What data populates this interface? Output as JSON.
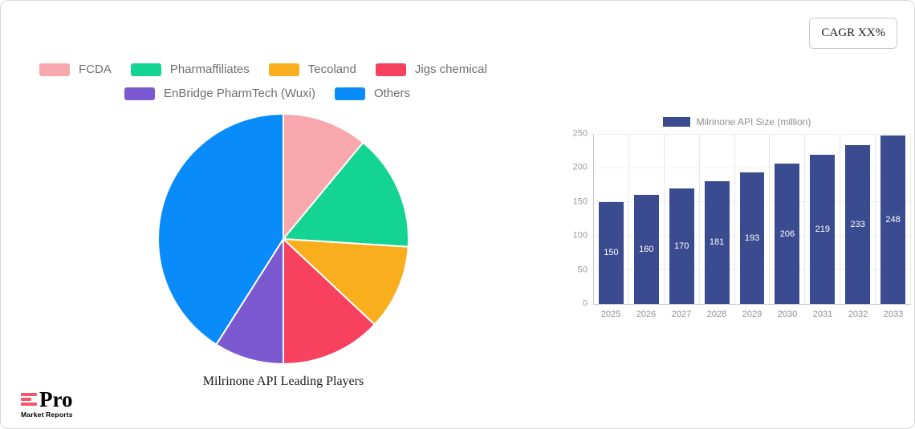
{
  "badge": {
    "label": "CAGR XX%"
  },
  "logo": {
    "name": "Pro",
    "tagline": "Market Reports",
    "accent_color": "#f4566b"
  },
  "chart_data": [
    {
      "type": "pie",
      "title": "Milrinone API Leading Players",
      "labels": [
        "FCDA",
        "Pharmaffiliates",
        "Tecoland",
        "Jigs chemical",
        "EnBridge PharmTech (Wuxi)",
        "Others"
      ],
      "values": [
        11,
        15,
        11,
        13,
        9,
        41
      ],
      "units": "percent (estimated from slice angles)",
      "colors": [
        "#f8a8ac",
        "#13d492",
        "#f9ae1d",
        "#f8405f",
        "#7a59d1",
        "#0a8bfa"
      ],
      "legend_position": "top"
    },
    {
      "type": "bar",
      "legend": [
        "Milrinone API Size (million)"
      ],
      "categories": [
        "2025",
        "2026",
        "2027",
        "2028",
        "2029",
        "2030",
        "2031",
        "2032",
        "2033"
      ],
      "values": [
        150,
        160,
        170,
        181,
        193,
        206,
        219,
        233,
        248
      ],
      "y_ticks": [
        0,
        50,
        100,
        150,
        200,
        250
      ],
      "ylim": [
        0,
        250
      ],
      "bar_color": "#3b4b90",
      "grid": true,
      "value_label_color": "#ffffff",
      "legend_position": "top"
    }
  ]
}
